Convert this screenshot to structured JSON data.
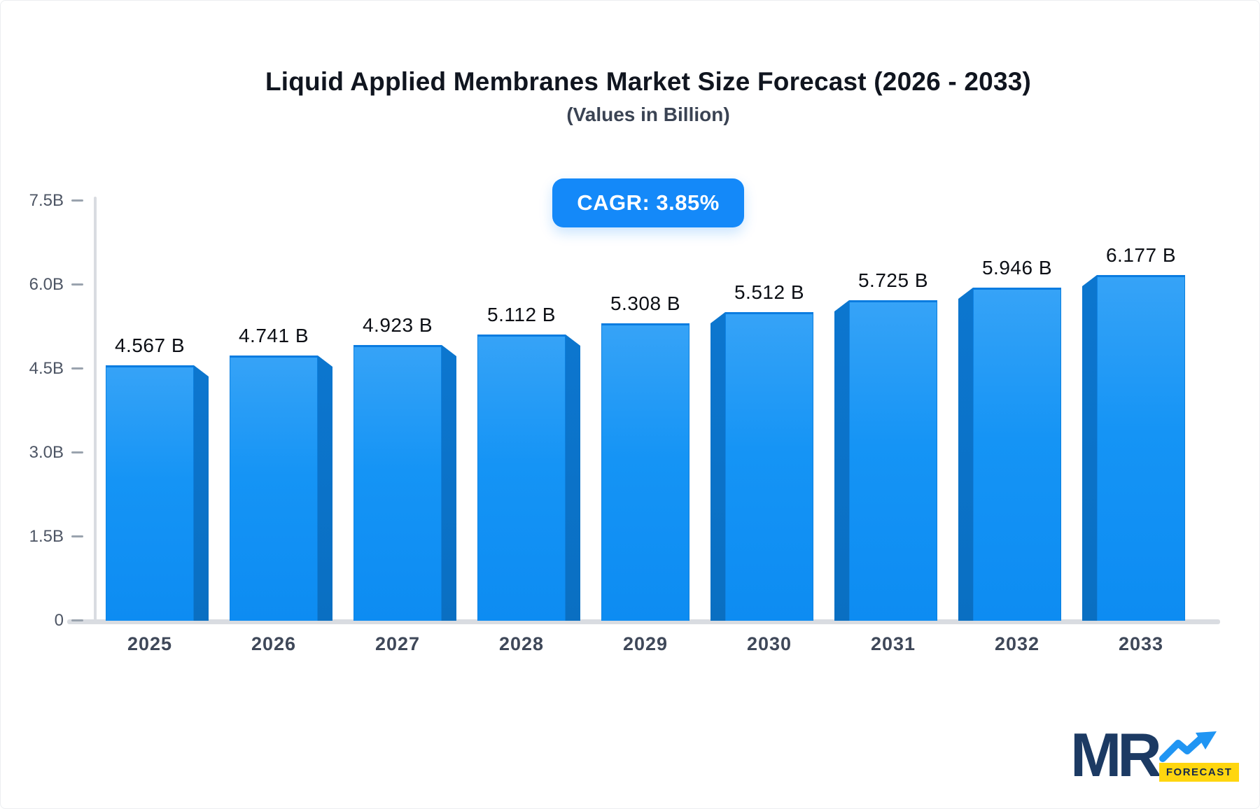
{
  "title": "Liquid Applied Membranes Market Size Forecast (2026 - 2033)",
  "subtitle": "(Values in Billion)",
  "cagr_label": "CAGR: 3.85%",
  "logo": {
    "mr_text": "MR",
    "forecast_text": "FORECAST",
    "trend_icon": "trend-up-arrow-icon"
  },
  "colors": {
    "accent_blue": "#1489f9",
    "bar_face_top": "#36a3f7",
    "bar_face_bottom": "#0d8cf2",
    "bar_side": "#0a6fc2",
    "axis_gray": "#d9dce1",
    "logo_navy": "#1c3a63",
    "logo_yellow": "#ffd60f"
  },
  "chart_data": {
    "type": "bar",
    "title": "Liquid Applied Membranes Market Size Forecast (2026 - 2033)",
    "subtitle": "(Values in Billion)",
    "xlabel": "",
    "ylabel": "",
    "categories": [
      "2025",
      "2026",
      "2027",
      "2028",
      "2029",
      "2030",
      "2031",
      "2032",
      "2033"
    ],
    "values": [
      4.567,
      4.741,
      4.923,
      5.112,
      5.308,
      5.512,
      5.725,
      5.946,
      6.177
    ],
    "value_labels": [
      "4.567 B",
      "4.741 B",
      "4.923 B",
      "5.112 B",
      "5.308 B",
      "5.512 B",
      "5.725 B",
      "5.946 B",
      "6.177 B"
    ],
    "ylim": [
      0,
      7.5
    ],
    "yticks": [
      {
        "label": "0",
        "value": 0
      },
      {
        "label": "1.5B",
        "value": 1.5
      },
      {
        "label": "3.0B",
        "value": 3.0
      },
      {
        "label": "4.5B",
        "value": 4.5
      },
      {
        "label": "6.0B",
        "value": 6.0
      },
      {
        "label": "7.5B",
        "value": 7.5
      }
    ],
    "grid": false,
    "legend": "none",
    "annotation": "CAGR: 3.85%"
  }
}
